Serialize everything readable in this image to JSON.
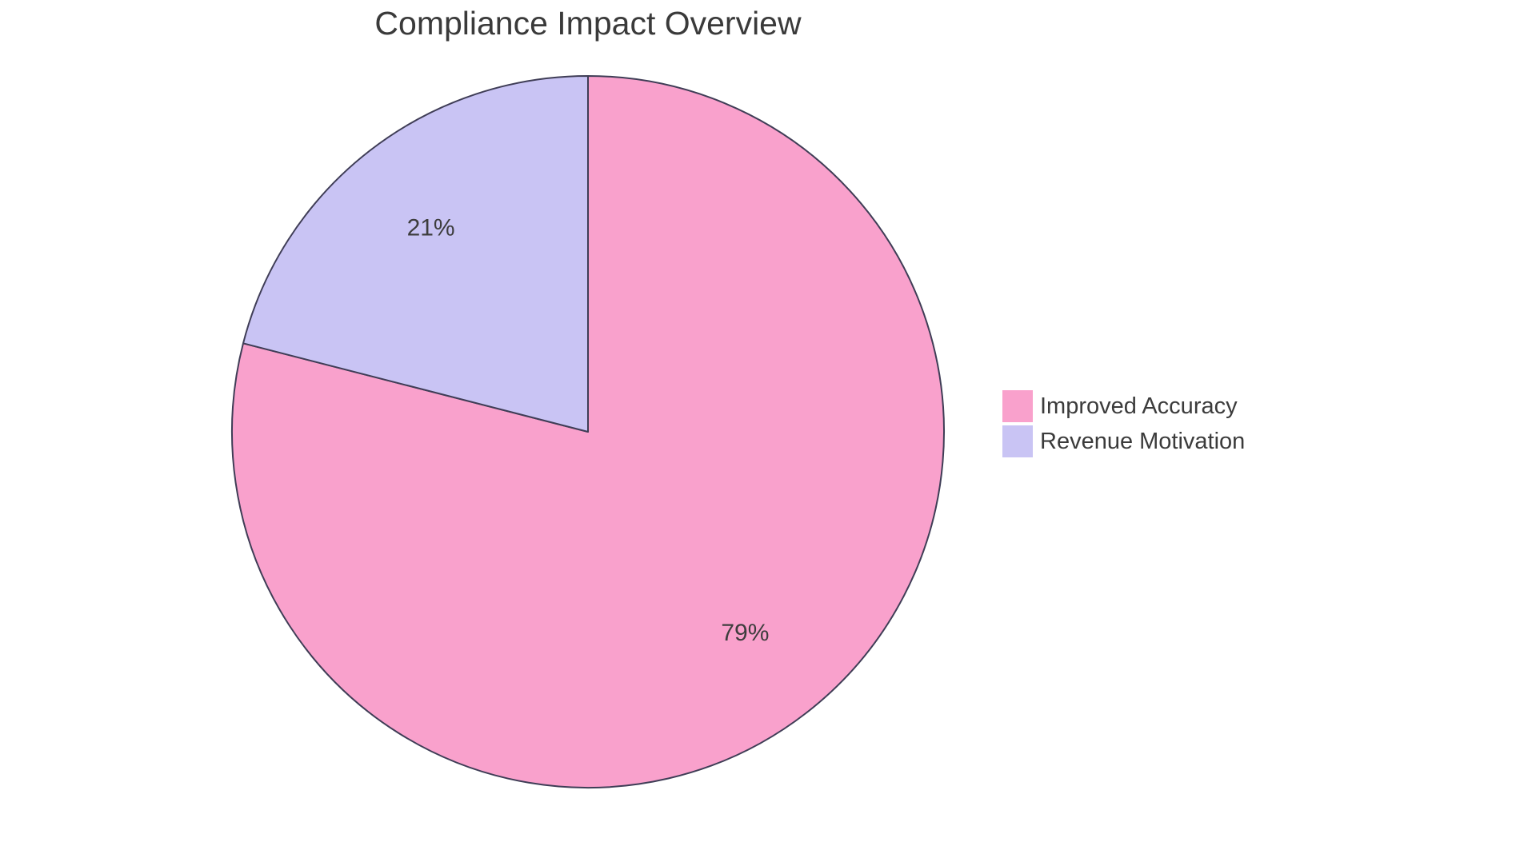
{
  "chart_data": {
    "type": "pie",
    "title": "Compliance Impact Overview",
    "labels": [
      "Improved Accuracy",
      "Revenue Motivation"
    ],
    "values": [
      79,
      21
    ],
    "value_labels": [
      "79%",
      "21%"
    ],
    "colors": [
      "#F9A1CC",
      "#C9C4F4"
    ],
    "border_color": "#3F3D56",
    "label_color": "#3d3d3d",
    "legend_position": "right",
    "start_angle_deg": -90,
    "direction": "clockwise"
  }
}
